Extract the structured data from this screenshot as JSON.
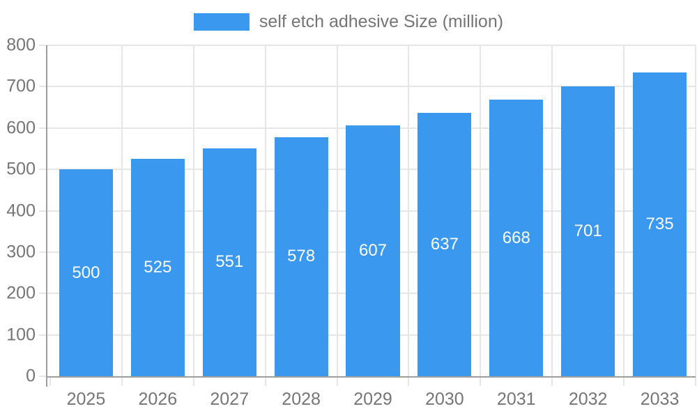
{
  "legend": {
    "label": "self etch adhesive Size (million)"
  },
  "colors": {
    "bar": "#3a99ee",
    "gridline": "#e6e6e6",
    "axis_line": "#9e9e9e",
    "axis_text": "#757575",
    "value_label_text": "#ffffff",
    "background": "#ffffff"
  },
  "chart_data": {
    "type": "bar",
    "title": "",
    "xlabel": "",
    "ylabel": "",
    "categories": [
      "2025",
      "2026",
      "2027",
      "2028",
      "2029",
      "2030",
      "2031",
      "2032",
      "2033"
    ],
    "series": [
      {
        "name": "self etch adhesive Size (million)",
        "values": [
          500,
          525,
          551,
          578,
          607,
          637,
          668,
          701,
          735
        ]
      }
    ],
    "value_labels_shown": true,
    "ylim": [
      0,
      800
    ],
    "y_ticks": [
      0,
      100,
      200,
      300,
      400,
      500,
      600,
      700,
      800
    ],
    "grid": true,
    "legend_position": "top"
  }
}
